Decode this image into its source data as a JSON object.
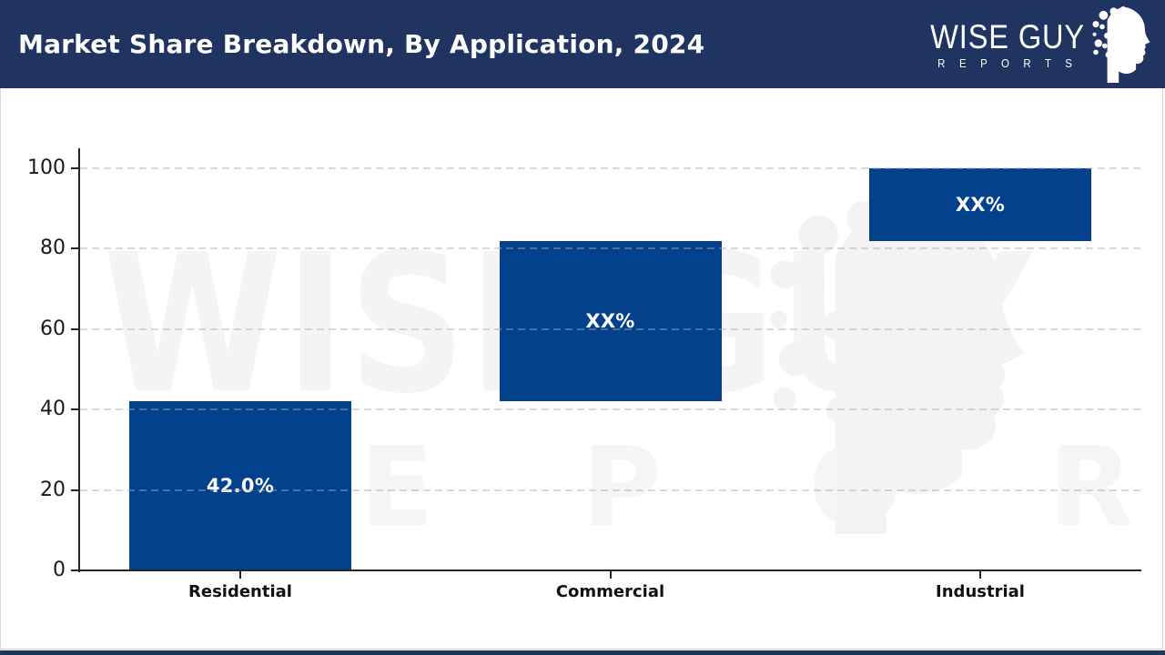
{
  "header": {
    "title": "Market Share Breakdown, By Application, 2024",
    "logo": {
      "line1": "WISE GUY",
      "line2": "R E P O R T S"
    },
    "bg_color": "#1f3460"
  },
  "watermark": {
    "line1": "WISE GUY",
    "line2": "R E P O R T S"
  },
  "chart_data": {
    "type": "bar",
    "subtype": "waterfall-breakdown",
    "title": "Market Share Breakdown, By Application, 2024",
    "categories": [
      "Residential",
      "Commercial",
      "Industrial"
    ],
    "segments": [
      {
        "category": "Residential",
        "start": 0,
        "end": 42.0,
        "label": "42.0%"
      },
      {
        "category": "Commercial",
        "start": 42.0,
        "end": 81.8,
        "label": "XX%"
      },
      {
        "category": "Industrial",
        "start": 81.8,
        "end": 100,
        "label": "XX%"
      }
    ],
    "y_ticks": [
      0,
      20,
      40,
      60,
      80,
      100
    ],
    "ylim": [
      0,
      105
    ],
    "xlabel": "",
    "ylabel": "",
    "grid": "horizontal-dashed",
    "legend": "none",
    "bar_color": "#04418c",
    "label_color": "#ffffff",
    "axis_color": "#262626",
    "header_color": "#1f3460"
  }
}
